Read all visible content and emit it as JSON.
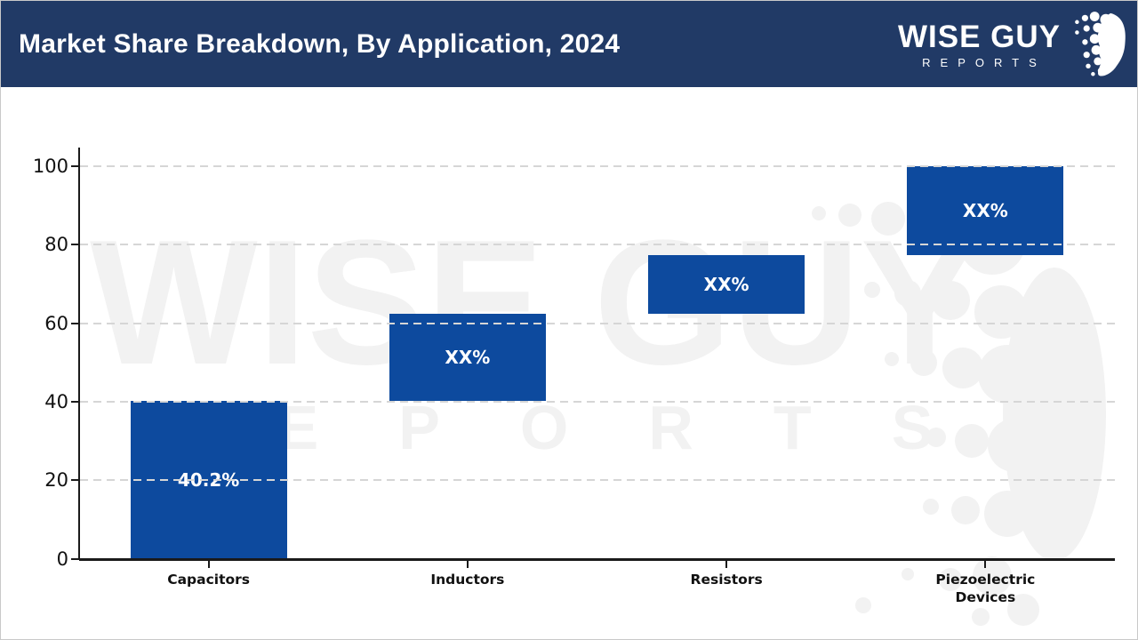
{
  "header": {
    "title": "Market Share Breakdown, By Application, 2024"
  },
  "logo": {
    "line1": "WISE GUY",
    "line2": "REPORTS",
    "icon": "dotted-head-profile"
  },
  "watermark": {
    "line1": "WISE GUY",
    "line2": "REPORTS",
    "icon": "dotted-head-profile"
  },
  "chart_data": {
    "type": "bar",
    "subtype": "floating-waterfall",
    "title": "Market Share Breakdown, By Application, 2024",
    "categories": [
      "Capacitors",
      "Inductors",
      "Resistors",
      "Piezoelectric Devices"
    ],
    "segments": [
      {
        "category": "Capacitors",
        "start": 0,
        "end": 40.2,
        "label": "40.2%"
      },
      {
        "category": "Inductors",
        "start": 40.2,
        "end": 62.4,
        "label": "XX%"
      },
      {
        "category": "Resistors",
        "start": 62.4,
        "end": 77.4,
        "label": "XX%"
      },
      {
        "category": "Piezoelectric Devices",
        "start": 77.4,
        "end": 100,
        "label": "XX%"
      }
    ],
    "xlabel": "",
    "ylabel": "",
    "ylim": [
      0,
      100
    ],
    "yticks": [
      0,
      20,
      40,
      60,
      80,
      100
    ],
    "grid": "horizontal dashed, drawn above bars",
    "legend": "none",
    "colors": {
      "bar": "#0d4a9e",
      "bar_label": "#ffffff",
      "grid": "#d6d6d6",
      "axis": "#1a1a1a",
      "tick_label": "#111111",
      "header_bg": "#213a66",
      "header_text": "#ffffff",
      "watermark": "#f2f2f2",
      "page_border": "#c9c9c9"
    }
  }
}
